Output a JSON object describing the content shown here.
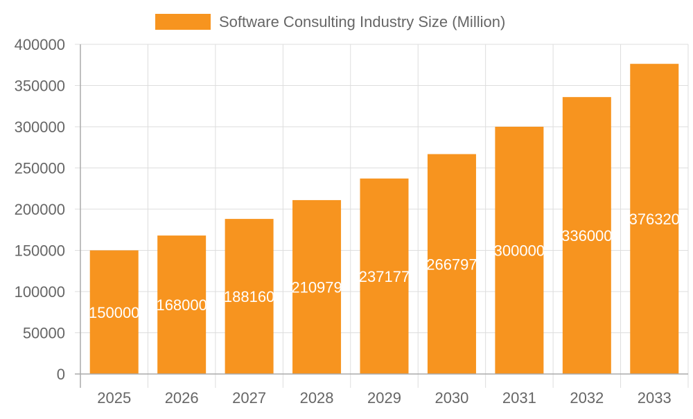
{
  "chart_data": {
    "type": "bar",
    "title": "",
    "xlabel": "",
    "ylabel": "",
    "categories": [
      "2025",
      "2026",
      "2027",
      "2028",
      "2029",
      "2030",
      "2031",
      "2032",
      "2033"
    ],
    "series": [
      {
        "name": "Software Consulting Industry Size (Million)",
        "values": [
          150000,
          168000,
          188160,
          210979,
          237177,
          266797,
          300000,
          336000,
          376320
        ]
      }
    ],
    "ylim": [
      0,
      400000
    ],
    "yticks": [
      0,
      50000,
      100000,
      150000,
      200000,
      250000,
      300000,
      350000,
      400000
    ],
    "grid": true,
    "legend_position": "top",
    "data_labels": "inside-center",
    "colors": {
      "bar": "#f7941f",
      "label": "#ffffff",
      "grid": "#dddddd",
      "tick_text": "#666666"
    }
  }
}
